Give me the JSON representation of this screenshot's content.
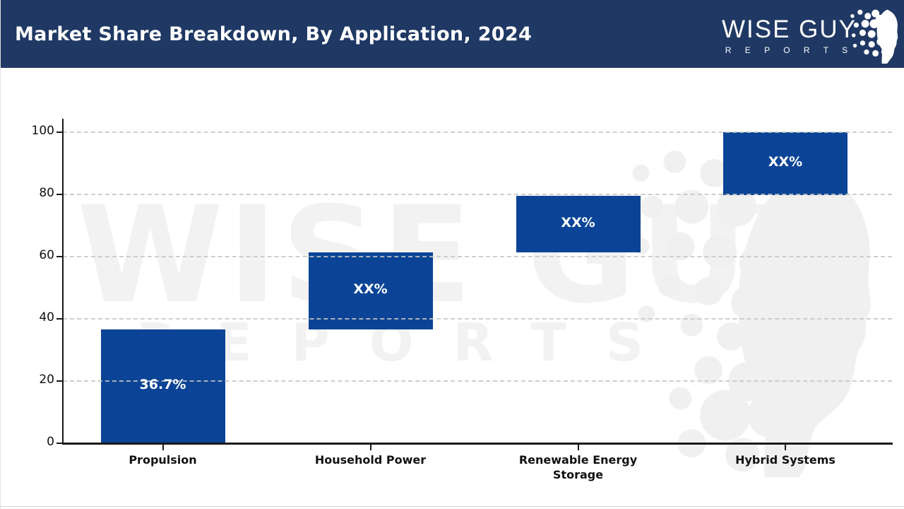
{
  "header": {
    "title": "Market Share Breakdown, By Application, 2024",
    "logo": {
      "line1": "WISE GUY",
      "line2": "R E P O R T S"
    }
  },
  "watermark": {
    "line1": "WISE GUY",
    "line2": "REPORTS"
  },
  "colors": {
    "header_bg": "#1F3864",
    "bar": "#0B4496",
    "grid": "#C5C5C5",
    "axis": "#1A1A1A",
    "bar_label": "#FFFFFF",
    "watermark": "#F2F2F2"
  },
  "chart_data": {
    "type": "bar",
    "subtype": "floating-waterfall",
    "title": "Market Share Breakdown, By Application, 2024",
    "categories": [
      "Propulsion",
      "Household Power",
      "Renewable Energy Storage",
      "Hybrid Systems"
    ],
    "bars": [
      {
        "category": "Propulsion",
        "start": 0,
        "end": 36.7,
        "label": "36.7%"
      },
      {
        "category": "Household Power",
        "start": 36.7,
        "end": 61.3,
        "label": "XX%"
      },
      {
        "category": "Renewable Energy Storage",
        "start": 61.3,
        "end": 79.5,
        "label": "XX%"
      },
      {
        "category": "Hybrid Systems",
        "start": 79.8,
        "end": 100,
        "label": "XX%"
      }
    ],
    "xlabel": "",
    "ylabel": "",
    "yticks": [
      0,
      20,
      40,
      60,
      80,
      100
    ],
    "ylim": [
      0,
      105
    ],
    "grid": "horizontal-dashed",
    "legend": "none"
  }
}
